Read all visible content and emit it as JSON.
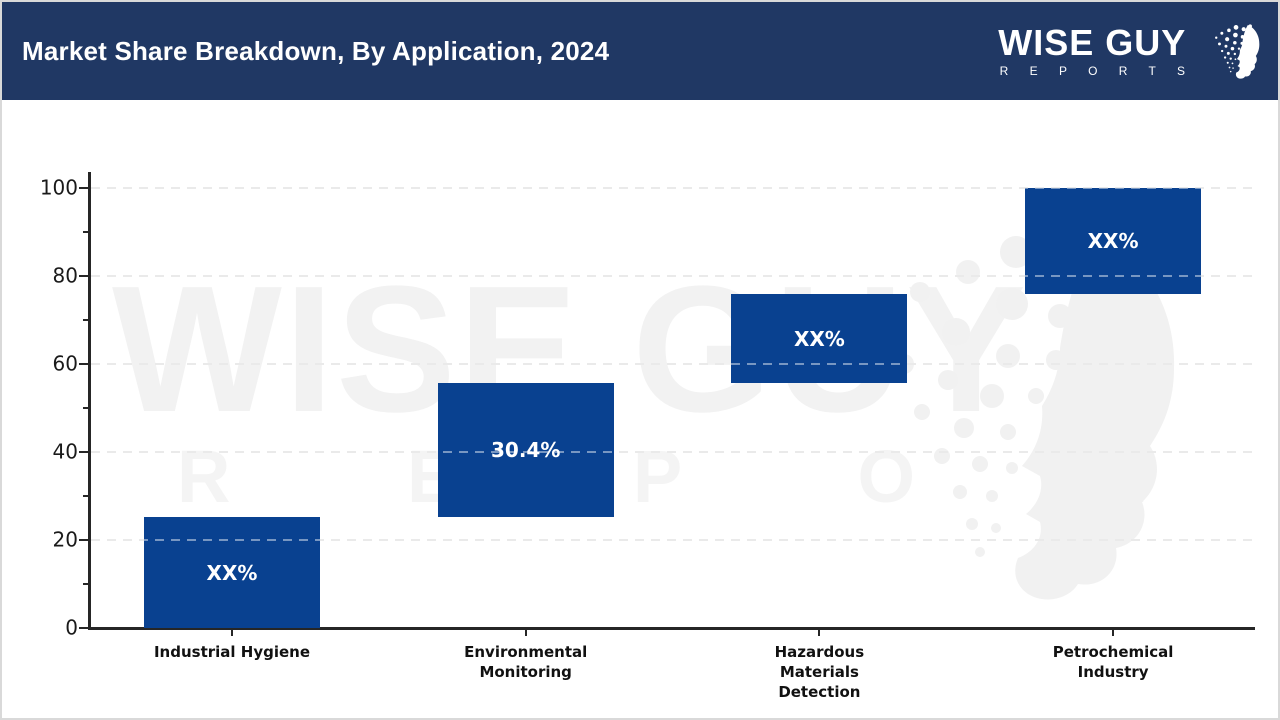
{
  "header": {
    "title": "Market Share Breakdown, By Application, 2024",
    "bg_color": "#203864",
    "logo": {
      "line1": "WISE GUY",
      "line2": "R E P O R T S"
    }
  },
  "watermark": {
    "line1": "WISE GUY",
    "line2": "R E P O R T S"
  },
  "colors": {
    "bar": "#094190",
    "grid": "#d9d9d9",
    "axis": "#262626",
    "frame_border": "#d9d9d9",
    "bar_label": "#ffffff",
    "watermark": "#f2f2f2"
  },
  "chart_data": {
    "type": "bar",
    "subtype": "floating-waterfall",
    "title": "Market Share Breakdown, By Application, 2024",
    "xlabel": "",
    "ylabel": "",
    "ylim": [
      0,
      100
    ],
    "yticks_major": [
      0,
      20,
      40,
      60,
      80,
      100
    ],
    "yticks_minor": [
      10,
      30,
      50,
      70,
      90
    ],
    "grid": "horizontal dashed at major ticks",
    "legend": "none",
    "categories": [
      "Industrial Hygiene",
      "Environmental Monitoring",
      "Hazardous Materials Detection",
      "Petrochemical Industry"
    ],
    "category_label_lines": [
      [
        "Industrial Hygiene"
      ],
      [
        "Environmental",
        "Monitoring"
      ],
      [
        "Hazardous",
        "Materials",
        "Detection"
      ],
      [
        "Petrochemical",
        "Industry"
      ]
    ],
    "bars": [
      {
        "category": "Industrial Hygiene",
        "start": 0,
        "end": 25.2,
        "height": 25.2,
        "value_label": "XX%"
      },
      {
        "category": "Environmental Monitoring",
        "start": 25.2,
        "end": 55.6,
        "height": 30.4,
        "value_label": "30.4%"
      },
      {
        "category": "Hazardous Materials Detection",
        "start": 55.6,
        "end": 75.9,
        "height": 20.3,
        "value_label": "XX%"
      },
      {
        "category": "Petrochemical Industry",
        "start": 75.9,
        "end": 100,
        "height": 24.1,
        "value_label": "XX%"
      }
    ]
  }
}
